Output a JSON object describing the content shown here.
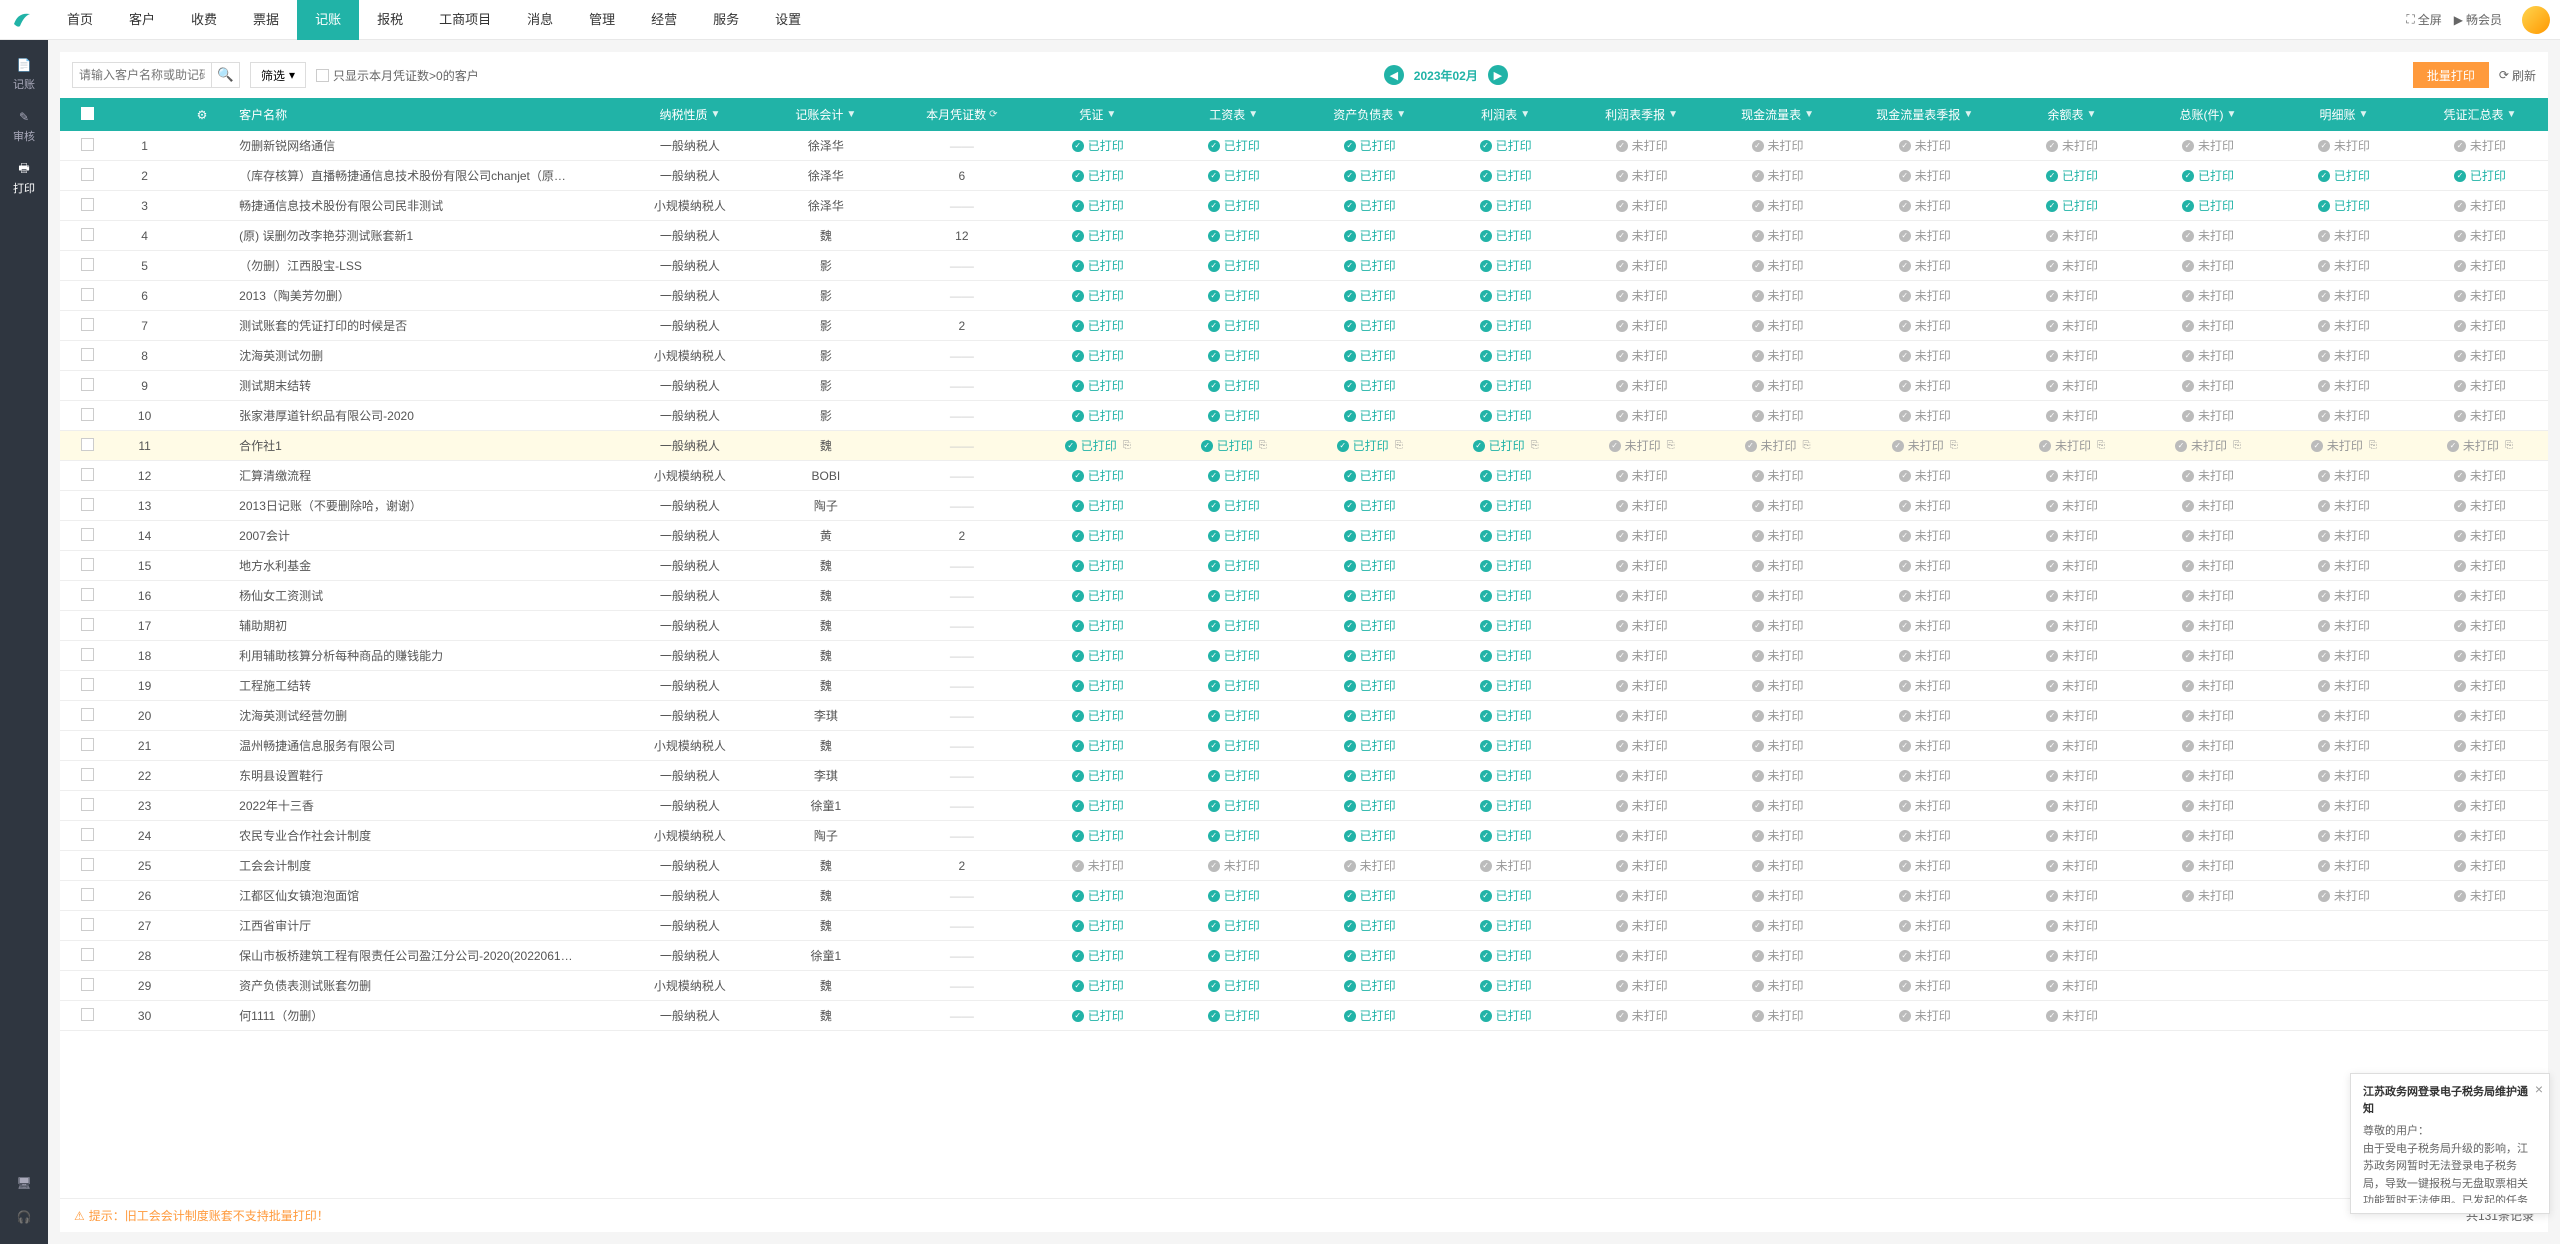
{
  "nav": {
    "tabs": [
      "首页",
      "客户",
      "收费",
      "票据",
      "记账",
      "报税",
      "工商项目",
      "消息",
      "管理",
      "经营",
      "服务",
      "设置"
    ],
    "active_index": 4,
    "right": {
      "fullscreen": "全屏",
      "member": "畅会员"
    }
  },
  "sidebar": {
    "items": [
      {
        "icon": "ledger",
        "label": "记账"
      },
      {
        "icon": "audit",
        "label": "审核"
      },
      {
        "icon": "print",
        "label": "打印"
      }
    ],
    "active_index": 2,
    "bottom": [
      {
        "icon": "monitor",
        "label": ""
      },
      {
        "icon": "headset",
        "label": ""
      }
    ]
  },
  "toolbar": {
    "search_placeholder": "请输入客户名称或助记码",
    "filter_label": "筛选",
    "checkbox_label": "只显示本月凭证数>0的客户",
    "date": "2023年02月",
    "batch_print": "批量打印",
    "refresh": "刷新"
  },
  "columns": [
    {
      "key": "chk",
      "label": "",
      "type": "chk"
    },
    {
      "key": "idx",
      "label": "",
      "type": "idx"
    },
    {
      "key": "gear",
      "label": "",
      "type": "gear"
    },
    {
      "key": "name",
      "label": "客户名称",
      "filter": false,
      "align": "left"
    },
    {
      "key": "tax_type",
      "label": "纳税性质",
      "filter": true
    },
    {
      "key": "accountant",
      "label": "记账会计",
      "filter": true
    },
    {
      "key": "voucher_count",
      "label": "本月凭证数",
      "refresh": true
    },
    {
      "key": "voucher",
      "label": "凭证",
      "filter": true
    },
    {
      "key": "wage",
      "label": "工资表",
      "filter": true
    },
    {
      "key": "balance",
      "label": "资产负债表",
      "filter": true
    },
    {
      "key": "profit",
      "label": "利润表",
      "filter": true
    },
    {
      "key": "profit_q",
      "label": "利润表季报",
      "filter": true
    },
    {
      "key": "cashflow",
      "label": "现金流量表",
      "filter": true
    },
    {
      "key": "cashflow_q",
      "label": "现金流量表季报",
      "filter": true
    },
    {
      "key": "balance2",
      "label": "余额表",
      "filter": true
    },
    {
      "key": "ledger",
      "label": "总账(件)",
      "filter": true
    },
    {
      "key": "detail",
      "label": "明细账",
      "filter": true
    },
    {
      "key": "summary",
      "label": "凭证汇总表",
      "filter": true
    }
  ],
  "status_labels": {
    "printed": "已打印",
    "unprinted": "未打印"
  },
  "rows": [
    {
      "idx": 1,
      "name": "勿删新锐网络通信",
      "tax_type": "一般纳税人",
      "accountant": "徐泽华",
      "vc": "",
      "pattern": "p4u"
    },
    {
      "idx": 2,
      "name": "（库存核算）直播畅捷通信息技术股份有限公司chanjet（原…",
      "tax_type": "一般纳税人",
      "accountant": "徐泽华",
      "vc": "6",
      "pattern": "p5m"
    },
    {
      "idx": 3,
      "name": "畅捷通信息技术股份有限公司民非测试",
      "tax_type": "小规模纳税人",
      "accountant": "徐泽华",
      "vc": "",
      "pattern": "p4mp"
    },
    {
      "idx": 4,
      "name": "(原) 误删勿改李艳芬测试账套新1",
      "tax_type": "一般纳税人",
      "accountant": "魏",
      "vc": "12",
      "pattern": "p4u"
    },
    {
      "idx": 5,
      "name": "（勿删）江西股宝-LSS",
      "tax_type": "一般纳税人",
      "accountant": "影",
      "vc": "",
      "pattern": "p4u"
    },
    {
      "idx": 6,
      "name": "2013（陶美芳勿删）",
      "tax_type": "一般纳税人",
      "accountant": "影",
      "vc": "",
      "pattern": "p4u"
    },
    {
      "idx": 7,
      "name": "测试账套的凭证打印的时候是否",
      "tax_type": "一般纳税人",
      "accountant": "影",
      "vc": "2",
      "pattern": "p4u"
    },
    {
      "idx": 8,
      "name": "沈海英测试勿删",
      "tax_type": "小规模纳税人",
      "accountant": "影",
      "vc": "",
      "pattern": "p4u"
    },
    {
      "idx": 9,
      "name": "测试期末结转",
      "tax_type": "一般纳税人",
      "accountant": "影",
      "vc": "",
      "pattern": "p4u"
    },
    {
      "idx": 10,
      "name": "张家港厚道针织品有限公司-2020",
      "tax_type": "一般纳税人",
      "accountant": "影",
      "vc": "",
      "pattern": "p4u"
    },
    {
      "idx": 11,
      "name": "合作社1",
      "tax_type": "一般纳税人",
      "accountant": "魏",
      "vc": "",
      "pattern": "p4u_ext",
      "highlight": true
    },
    {
      "idx": 12,
      "name": "汇算清缴流程",
      "tax_type": "小规模纳税人",
      "accountant": "BOBI",
      "vc": "",
      "pattern": "p4u"
    },
    {
      "idx": 13,
      "name": "2013日记账（不要删除哈，谢谢）",
      "tax_type": "一般纳税人",
      "accountant": "陶子",
      "vc": "",
      "pattern": "p4u"
    },
    {
      "idx": 14,
      "name": "2007会计",
      "tax_type": "一般纳税人",
      "accountant": "黄",
      "vc": "2",
      "pattern": "p4u"
    },
    {
      "idx": 15,
      "name": "地方水利基金",
      "tax_type": "一般纳税人",
      "accountant": "魏",
      "vc": "",
      "pattern": "p4u"
    },
    {
      "idx": 16,
      "name": "杨仙女工资测试",
      "tax_type": "一般纳税人",
      "accountant": "魏",
      "vc": "",
      "pattern": "p4u"
    },
    {
      "idx": 17,
      "name": "辅助期初",
      "tax_type": "一般纳税人",
      "accountant": "魏",
      "vc": "",
      "pattern": "p4u"
    },
    {
      "idx": 18,
      "name": "利用辅助核算分析每种商品的赚钱能力",
      "tax_type": "一般纳税人",
      "accountant": "魏",
      "vc": "",
      "pattern": "p4u"
    },
    {
      "idx": 19,
      "name": "工程施工结转",
      "tax_type": "一般纳税人",
      "accountant": "魏",
      "vc": "",
      "pattern": "p4u"
    },
    {
      "idx": 20,
      "name": "沈海英测试经营勿删",
      "tax_type": "一般纳税人",
      "accountant": "李琪",
      "vc": "",
      "pattern": "p4u"
    },
    {
      "idx": 21,
      "name": "温州畅捷通信息服务有限公司",
      "tax_type": "小规模纳税人",
      "accountant": "魏",
      "vc": "",
      "pattern": "p4u"
    },
    {
      "idx": 22,
      "name": "东明县设置鞋行",
      "tax_type": "一般纳税人",
      "accountant": "李琪",
      "vc": "",
      "pattern": "p4u"
    },
    {
      "idx": 23,
      "name": "2022年十三香",
      "tax_type": "一般纳税人",
      "accountant": "徐童1",
      "vc": "",
      "pattern": "p4u"
    },
    {
      "idx": 24,
      "name": "农民专业合作社会计制度",
      "tax_type": "小规模纳税人",
      "accountant": "陶子",
      "vc": "",
      "pattern": "p4u"
    },
    {
      "idx": 25,
      "name": "工会会计制度",
      "tax_type": "一般纳税人",
      "accountant": "魏",
      "vc": "2",
      "pattern": "u0"
    },
    {
      "idx": 26,
      "name": "江都区仙女镇泡泡面馆",
      "tax_type": "一般纳税人",
      "accountant": "魏",
      "vc": "",
      "pattern": "p4u"
    },
    {
      "idx": 27,
      "name": "江西省审计厅",
      "tax_type": "一般纳税人",
      "accountant": "魏",
      "vc": "",
      "pattern": "p4u_partial"
    },
    {
      "idx": 28,
      "name": "保山市板桥建筑工程有限责任公司盈江分公司-2020(2022061…",
      "tax_type": "一般纳税人",
      "accountant": "徐童1",
      "vc": "",
      "pattern": "p4u_partial"
    },
    {
      "idx": 29,
      "name": "资产负债表测试账套勿删",
      "tax_type": "小规模纳税人",
      "accountant": "魏",
      "vc": "",
      "pattern": "p4u_partial"
    },
    {
      "idx": 30,
      "name": "何1111（勿删）",
      "tax_type": "一般纳税人",
      "accountant": "魏",
      "vc": "",
      "pattern": "p4u_partial"
    }
  ],
  "footer": {
    "warning": "提示：旧工会会计制度账套不支持批量打印！",
    "count_prefix": "共",
    "count": 131,
    "count_suffix": "条记录"
  },
  "notification": {
    "title": "江苏政务网登录电子税务局维护通知",
    "greeting": "尊敬的用户：",
    "body": "由于受电子税务局升级的影响，江苏政务网暂时无法登录电子税务局，导致一键报税与无盘取票相关功能暂时无法使用。已发起的任务我们将待电子税务局恢复后执行完成返回结果；我们已联系政务网相关运维正在加紧修复，恢复时间待另行通知。"
  }
}
